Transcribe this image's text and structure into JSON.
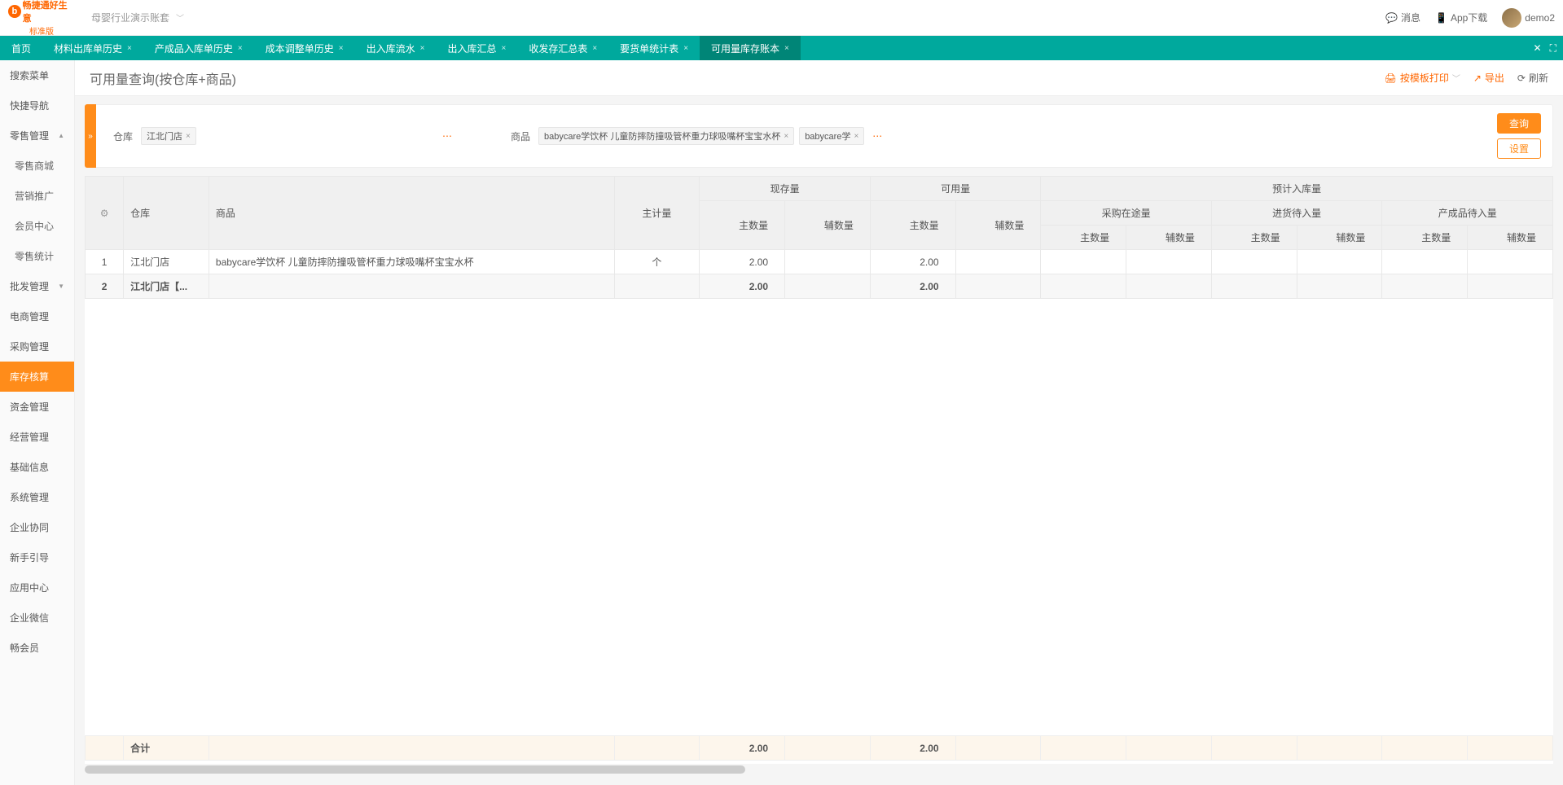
{
  "header": {
    "logo_text": "畅捷通好生意",
    "logo_sub": "标准版",
    "account_selector": "母婴行业演示账套",
    "messages": "消息",
    "app_download": "App下载",
    "username": "demo2"
  },
  "tabs": [
    {
      "label": "首页",
      "closable": false,
      "active": false
    },
    {
      "label": "材料出库单历史",
      "closable": true,
      "active": false
    },
    {
      "label": "产成品入库单历史",
      "closable": true,
      "active": false
    },
    {
      "label": "成本调整单历史",
      "closable": true,
      "active": false
    },
    {
      "label": "出入库流水",
      "closable": true,
      "active": false
    },
    {
      "label": "出入库汇总",
      "closable": true,
      "active": false
    },
    {
      "label": "收发存汇总表",
      "closable": true,
      "active": false
    },
    {
      "label": "要货单统计表",
      "closable": true,
      "active": false
    },
    {
      "label": "可用量库存账本",
      "closable": true,
      "active": true
    }
  ],
  "sidebar": [
    {
      "label": "搜索菜单",
      "type": "top"
    },
    {
      "label": "快捷导航",
      "type": "top"
    },
    {
      "label": "零售管理",
      "type": "group",
      "expanded": true
    },
    {
      "label": "零售商城",
      "type": "sub"
    },
    {
      "label": "营销推广",
      "type": "sub"
    },
    {
      "label": "会员中心",
      "type": "sub"
    },
    {
      "label": "零售统计",
      "type": "sub"
    },
    {
      "label": "批发管理",
      "type": "group",
      "expanded": false
    },
    {
      "label": "电商管理",
      "type": "top"
    },
    {
      "label": "采购管理",
      "type": "top"
    },
    {
      "label": "库存核算",
      "type": "top",
      "active": true
    },
    {
      "label": "资金管理",
      "type": "top"
    },
    {
      "label": "经营管理",
      "type": "top"
    },
    {
      "label": "基础信息",
      "type": "top"
    },
    {
      "label": "系统管理",
      "type": "top"
    },
    {
      "label": "企业协同",
      "type": "top"
    },
    {
      "label": "新手引导",
      "type": "top"
    },
    {
      "label": "应用中心",
      "type": "top"
    },
    {
      "label": "企业微信",
      "type": "top"
    },
    {
      "label": "畅会员",
      "type": "top"
    }
  ],
  "page": {
    "title": "可用量查询(按仓库+商品)",
    "print": "按模板打印",
    "export": "导出",
    "refresh": "刷新"
  },
  "filter": {
    "warehouse_label": "仓库",
    "warehouse_tags": [
      "江北门店"
    ],
    "product_label": "商品",
    "product_tags": [
      "babycare学饮杯 儿童防摔防撞吸管杯重力球吸嘴杯宝宝水杯",
      "babycare学"
    ],
    "query_btn": "查询",
    "settings_btn": "设置"
  },
  "table": {
    "headers": {
      "warehouse": "仓库",
      "product": "商品",
      "main_unit": "主计量",
      "stock": "现存量",
      "available": "可用量",
      "expected_in": "预计入库量",
      "purchase_transit": "采购在途量",
      "incoming_pending": "进货待入量",
      "finished_pending": "产成品待入量",
      "main_qty": "主数量",
      "aux_qty": "辅数量"
    },
    "rows": [
      {
        "idx": "1",
        "warehouse": "江北门店",
        "product": "babycare学饮杯 儿童防摔防撞吸管杯重力球吸嘴杯宝宝水杯",
        "unit": "个",
        "stock_main": "2.00",
        "stock_aux": "",
        "avail_main": "2.00",
        "avail_aux": ""
      },
      {
        "idx": "2",
        "warehouse": "江北门店【...",
        "product": "",
        "unit": "",
        "stock_main": "2.00",
        "stock_aux": "",
        "avail_main": "2.00",
        "avail_aux": "",
        "summary": true
      }
    ],
    "footer": {
      "label": "合计",
      "stock_main": "2.00",
      "avail_main": "2.00"
    }
  }
}
